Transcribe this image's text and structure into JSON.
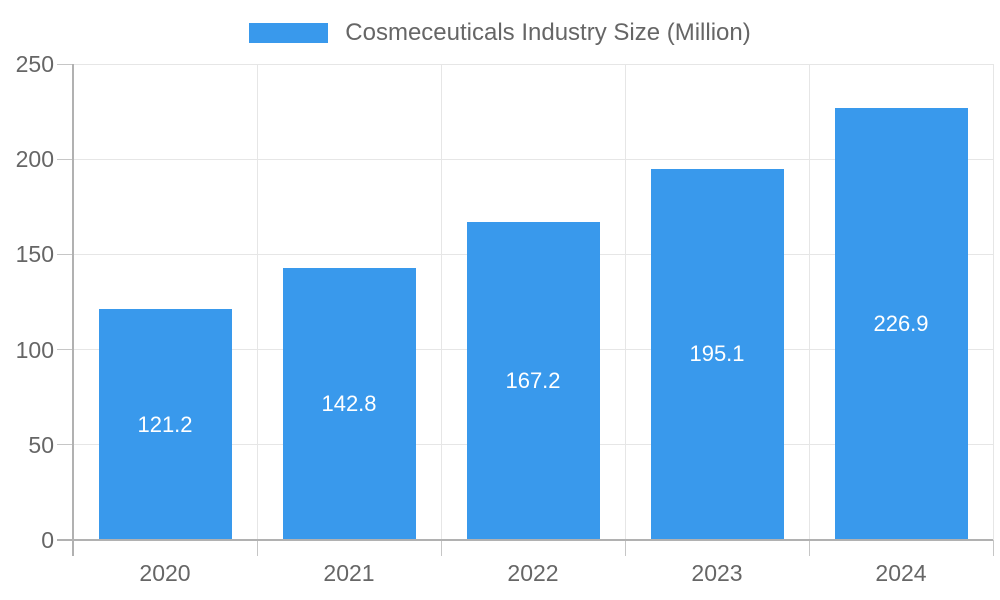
{
  "chart_data": {
    "type": "bar",
    "title": "Cosmeceuticals Industry Size (Million)",
    "legend_position": "top",
    "categories": [
      "2020",
      "2021",
      "2022",
      "2023",
      "2024"
    ],
    "series": [
      {
        "name": "Cosmeceuticals Industry Size (Million)",
        "color": "#3999EC",
        "values": [
          121.2,
          142.8,
          167.2,
          195.1,
          226.9
        ]
      }
    ],
    "value_labels": [
      "121.2",
      "142.8",
      "167.2",
      "195.1",
      "226.9"
    ],
    "xlabel": "",
    "ylabel": "",
    "ylim": [
      0,
      250
    ],
    "yticks": [
      0,
      50,
      100,
      150,
      200,
      250
    ],
    "grid": true,
    "colors": {
      "bar": "#3999EC",
      "value_label_text": "#FFFFFF",
      "axis_text": "#666666",
      "legend_text": "#666666",
      "axis_line": "#B1B1B1",
      "tick_line": "#C6C6C6",
      "grid_line": "#E6E6E6",
      "background": "#FFFFFF"
    }
  }
}
